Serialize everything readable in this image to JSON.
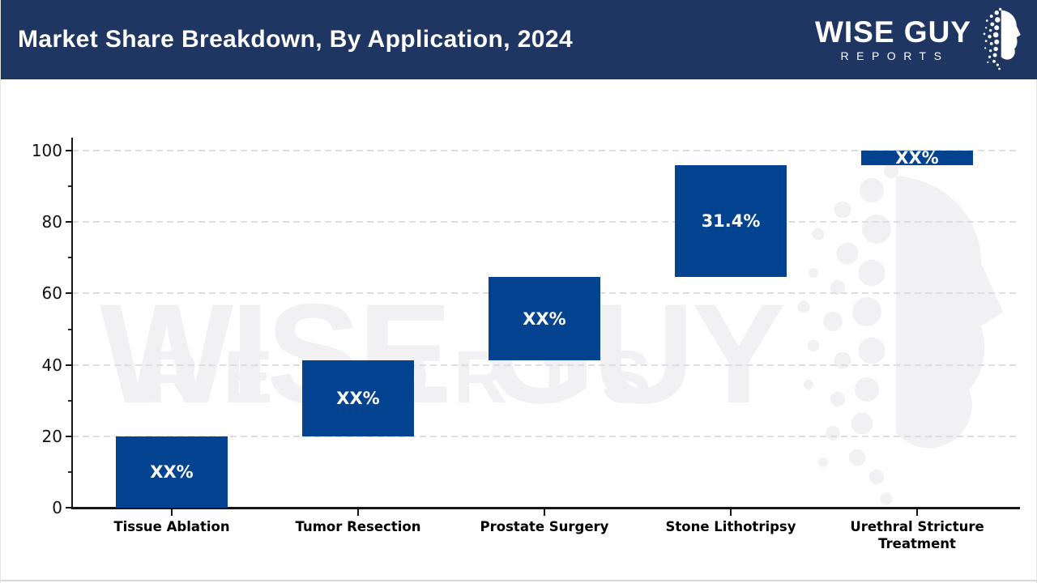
{
  "header": {
    "title": "Market Share Breakdown, By Application, 2024",
    "brand_line1": "WISE GUY",
    "brand_line2": "REPORTS"
  },
  "watermark": {
    "line1": "WISE GUY",
    "line2": "REPORTS"
  },
  "chart_data": {
    "type": "bar",
    "subtype": "waterfall",
    "title": "Market Share Breakdown, By Application, 2024",
    "categories": [
      "Tissue Ablation",
      "Tumor Resection",
      "Prostate Surgery",
      "Stone Lithotripsy",
      "Urethral Stricture Treatment"
    ],
    "segments": [
      {
        "category": "Tissue Ablation",
        "start": 0,
        "end": 20,
        "label": "XX%"
      },
      {
        "category": "Tumor Resection",
        "start": 20,
        "end": 41.2,
        "label": "XX%"
      },
      {
        "category": "Prostate Surgery",
        "start": 41.2,
        "end": 64.6,
        "label": "XX%"
      },
      {
        "category": "Stone Lithotripsy",
        "start": 64.6,
        "end": 96,
        "label": "31.4%",
        "value": 31.4
      },
      {
        "category": "Urethral Stricture Treatment",
        "start": 96,
        "end": 100,
        "label": "XX%"
      }
    ],
    "ylim": [
      0,
      100
    ],
    "yticks": [
      0,
      20,
      40,
      60,
      80,
      100
    ],
    "grid": "dashed-horizontal",
    "legend": "none",
    "bar_color": "#04438f",
    "xlabel": "",
    "ylabel": ""
  },
  "colors": {
    "header_bg": "#1f3562",
    "bar": "#04438f",
    "grid": "#dedede",
    "watermark": "#f1f1f4",
    "axis": "#151515"
  }
}
